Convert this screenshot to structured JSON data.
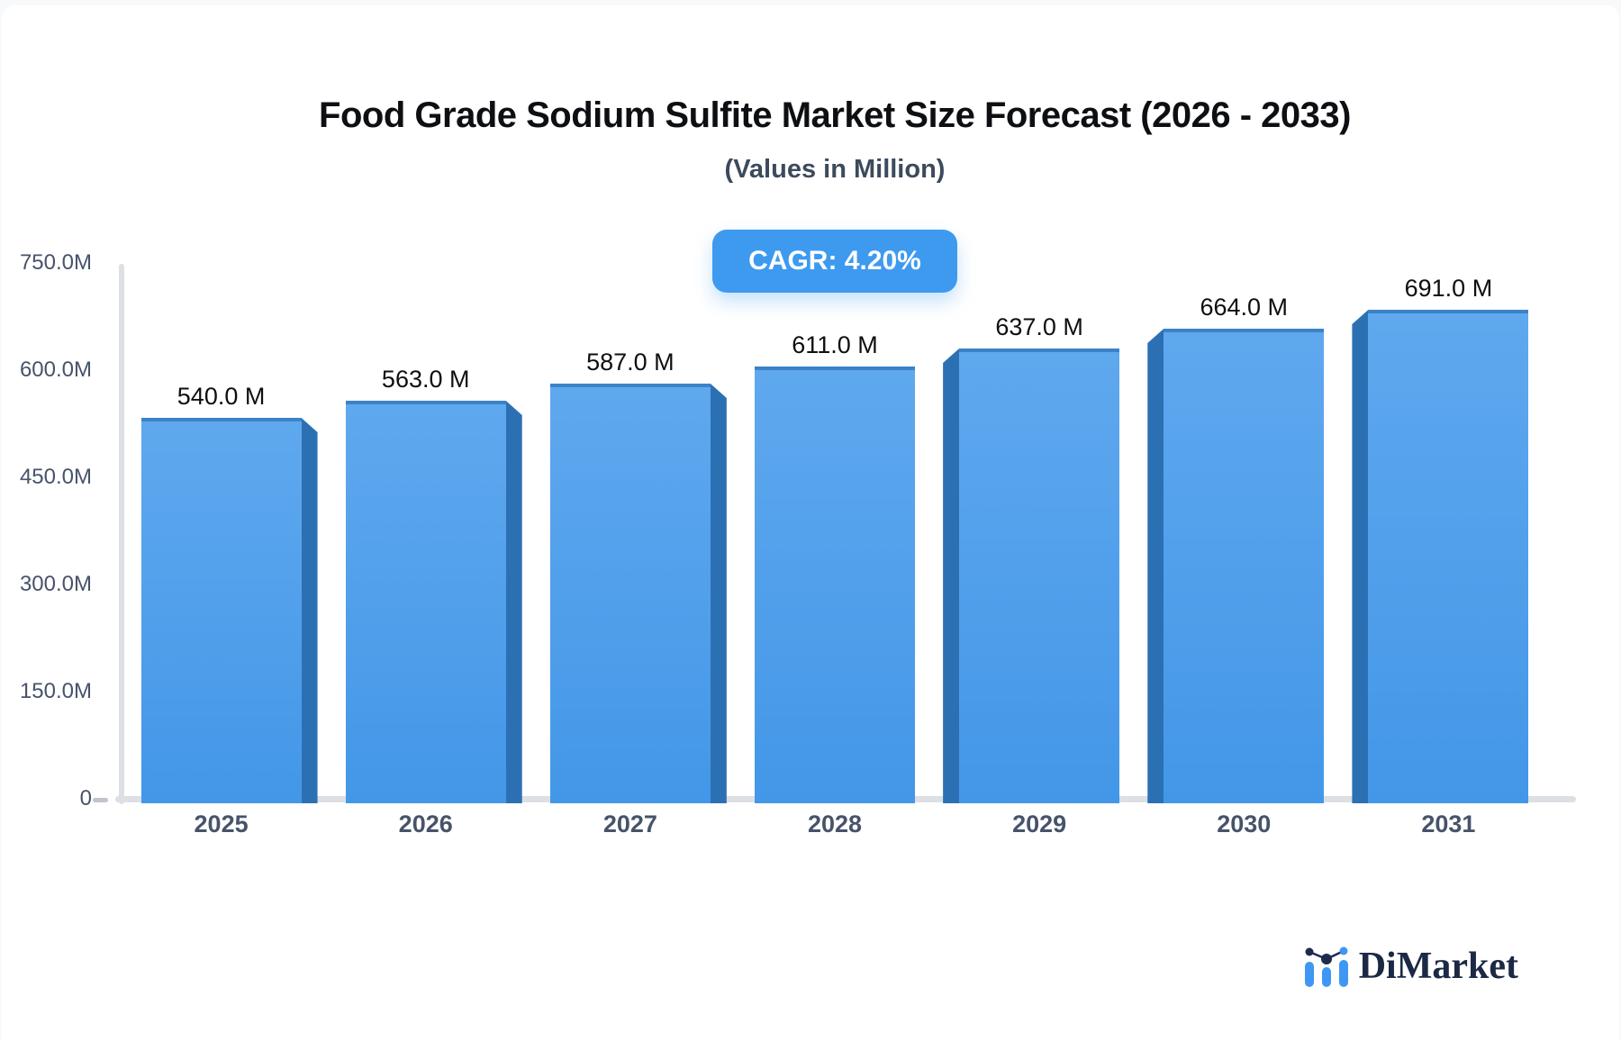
{
  "chart_data": {
    "type": "bar",
    "title": "Food Grade Sodium Sulfite Market Size Forecast (2026 - 2033)",
    "subtitle": "(Values in Million)",
    "cagr_label": "CAGR: 4.20%",
    "categories": [
      "2025",
      "2026",
      "2027",
      "2028",
      "2029",
      "2030",
      "2031"
    ],
    "values": [
      540,
      563,
      587,
      611,
      637,
      664,
      691
    ],
    "bar_labels": [
      "540.0 M",
      "563.0 M",
      "587.0 M",
      "611.0 M",
      "637.0 M",
      "664.0 M",
      "691.0 M"
    ],
    "unit": "Million",
    "ylim": [
      0,
      750
    ],
    "yticks": [
      {
        "value": 750,
        "label": "750.0M"
      },
      {
        "value": 600,
        "label": "600.0M"
      },
      {
        "value": 450,
        "label": "450.0M"
      },
      {
        "value": 300,
        "label": "300.0M"
      },
      {
        "value": 150,
        "label": "150.0M"
      },
      {
        "value": 0,
        "label": "0"
      }
    ],
    "grid": false,
    "legend": false,
    "bar_3d_sides": [
      "right",
      "right",
      "right",
      "none",
      "left",
      "left",
      "left"
    ]
  },
  "colors": {
    "bar_face_top": "#5FA8EE",
    "bar_face_bottom": "#4397E8",
    "bar_top_border": "#3B82C8",
    "bar_side": "#2C70B4",
    "badge_bg": "#3E9AEF",
    "badge_text": "#FFFFFF",
    "axis_line": "#DCDFE4",
    "tick_text": "#47536A",
    "title_text": "#0D0F12",
    "subtitle_text": "#3D4A5C",
    "value_text": "#0E0F11",
    "logo_text": "#1B2944",
    "logo_blue": "#3F97F4",
    "logo_dark": "#1E2B4F",
    "page_bg": "#F7F9FB",
    "card_bg": "#FFFFFF"
  },
  "logo": {
    "text": "DiMarket",
    "icon": "bar-line-chart-icon"
  }
}
